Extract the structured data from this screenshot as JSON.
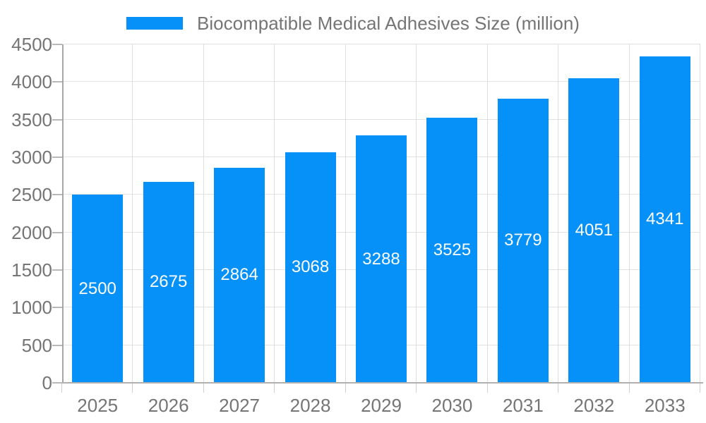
{
  "legend": {
    "label": "Biocompatible Medical Adhesives Size (million)"
  },
  "chart_data": {
    "type": "bar",
    "title": "Biocompatible Medical Adhesives Size (million)",
    "categories": [
      "2025",
      "2026",
      "2027",
      "2028",
      "2029",
      "2030",
      "2031",
      "2032",
      "2033"
    ],
    "values": [
      2500,
      2675,
      2864,
      3068,
      3288,
      3525,
      3779,
      4051,
      4341
    ],
    "xlabel": "",
    "ylabel": "",
    "ylim": [
      0,
      4500
    ],
    "y_ticks": [
      0,
      500,
      1000,
      1500,
      2000,
      2500,
      3000,
      3500,
      4000,
      4500
    ],
    "grid": true,
    "legend_position": "top",
    "colors": {
      "bar": "#0591f8",
      "value_label": "#ffffff",
      "axis_label": "#757575",
      "legend_text": "#757575",
      "gridline": "#e2e2e2",
      "axis_line": "#b0b0b0"
    }
  }
}
